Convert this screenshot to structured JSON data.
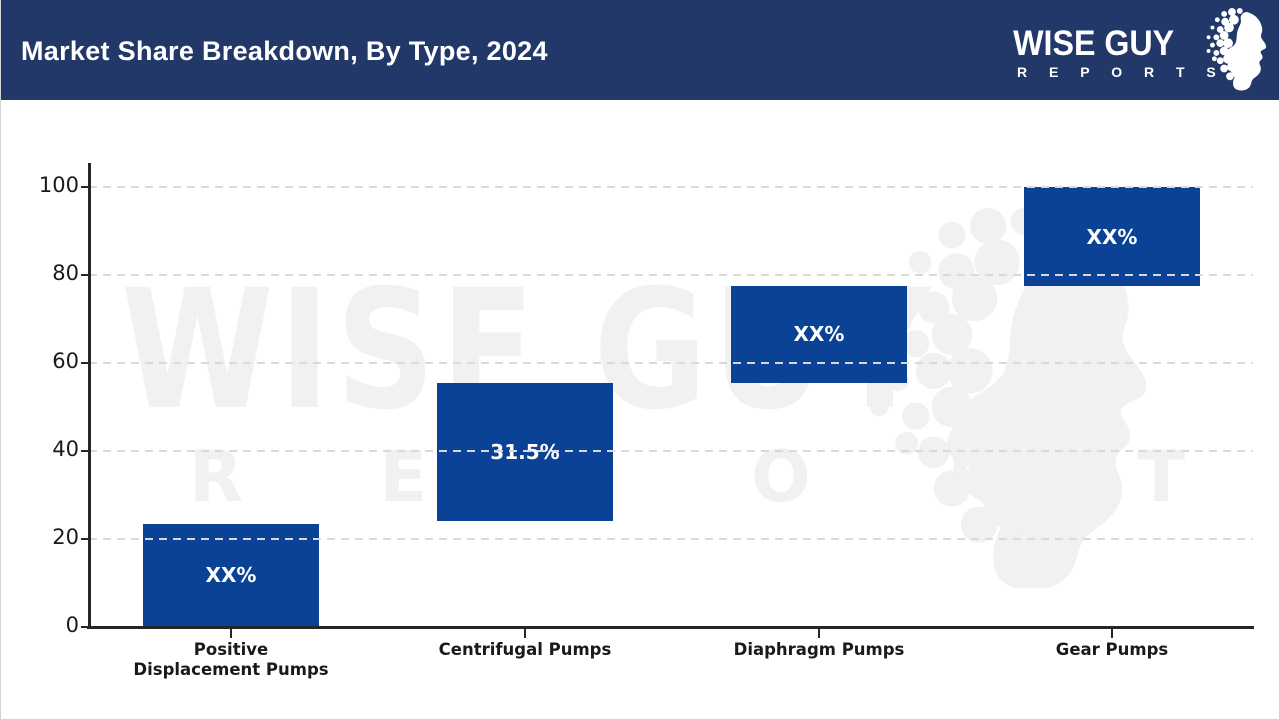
{
  "header": {
    "title": "Market Share Breakdown, By Type, 2024",
    "logo": {
      "line1": "WISE GUY",
      "line2": "R E P O R T S"
    }
  },
  "watermark": {
    "line1": "WISE GUY",
    "line2": "R E P O R T S"
  },
  "colors": {
    "header_navy": "#213869",
    "bar_blue": "#0a4296",
    "axis": "#262626",
    "grid": "#d9d9d9",
    "watermark": "#f1f1f2"
  },
  "chart_data": {
    "type": "bar",
    "subtype": "floating-waterfall",
    "title": "Market Share Breakdown, By Type, 2024",
    "categories": [
      "Positive\nDisplacement Pumps",
      "Centrifugal Pumps",
      "Diaphragm Pumps",
      "Gear Pumps"
    ],
    "segments": [
      {
        "category": "Positive Displacement Pumps",
        "start": 0,
        "end": 23.5,
        "label": "XX%"
      },
      {
        "category": "Centrifugal Pumps",
        "start": 24,
        "end": 55.5,
        "label": "31.5%"
      },
      {
        "category": "Diaphragm Pumps",
        "start": 55.5,
        "end": 77.5,
        "label": "XX%"
      },
      {
        "category": "Gear Pumps",
        "start": 77.5,
        "end": 100,
        "label": "XX%"
      }
    ],
    "xlabel": "",
    "ylabel": "",
    "ylim": [
      0,
      100
    ],
    "yticks": [
      0,
      20,
      40,
      60,
      80,
      100
    ],
    "grid": "horizontal-dashed, drawn above bars",
    "legend": "none",
    "bar_value_label_color": "#ffffff"
  }
}
